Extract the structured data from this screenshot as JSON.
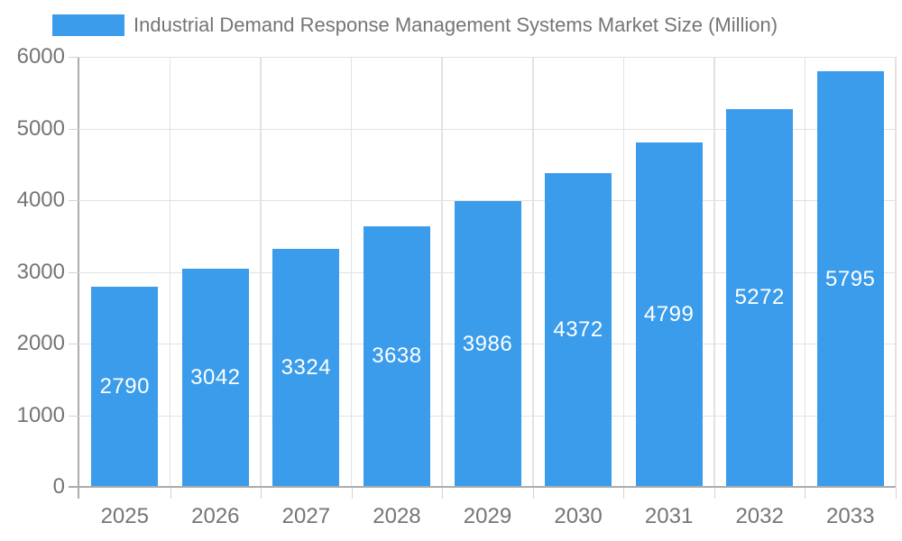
{
  "chart_data": {
    "type": "bar",
    "title": "Industrial Demand Response Management Systems Market Size (Million)",
    "categories": [
      "2025",
      "2026",
      "2027",
      "2028",
      "2029",
      "2030",
      "2031",
      "2032",
      "2033"
    ],
    "values": [
      2790,
      3042,
      3324,
      3638,
      3986,
      4372,
      4799,
      5272,
      5795
    ],
    "xlabel": "",
    "ylabel": "",
    "ylim": [
      0,
      6000
    ],
    "yticks": [
      0,
      1000,
      2000,
      3000,
      4000,
      5000,
      6000
    ],
    "grid": true,
    "legend_position": "top-left",
    "value_label_position": "inside-center",
    "colors": {
      "bar": "#3B9CEB",
      "value_label": "#FFFFFF",
      "axis_text": "#757575",
      "grid_line": "#E2E2E2",
      "axis_line": "#ACACAC",
      "tick_line": "#D4D4D4",
      "background": "#FFFFFF"
    }
  }
}
